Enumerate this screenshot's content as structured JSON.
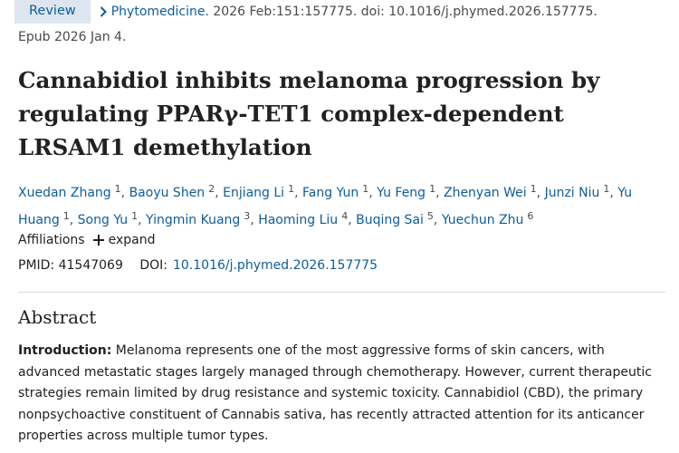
{
  "citation": {
    "badge": "Review",
    "journal": "Phytomedicine.",
    "details": " 2026 Feb:151:157775. doi: 10.1016/j.phymed.2026.157775.",
    "epub": "Epub 2026 Jan 4."
  },
  "article": {
    "title": "Cannabidiol inhibits melanoma progression by regulating PPARγ-TET1 complex-dependent LRSAM1 demethylation"
  },
  "authors": [
    {
      "name": "Xuedan Zhang",
      "aff": "1"
    },
    {
      "name": "Baoyu Shen",
      "aff": "2"
    },
    {
      "name": "Enjiang Li",
      "aff": "1"
    },
    {
      "name": "Fang Yun",
      "aff": "1"
    },
    {
      "name": "Yu Feng",
      "aff": "1"
    },
    {
      "name": "Zhenyan Wei",
      "aff": "1"
    },
    {
      "name": "Junzi Niu",
      "aff": "1"
    },
    {
      "name": "Yu Huang",
      "aff": "1"
    },
    {
      "name": "Song Yu",
      "aff": "1"
    },
    {
      "name": "Yingmin Kuang",
      "aff": "3"
    },
    {
      "name": "Haoming Liu",
      "aff": "4"
    },
    {
      "name": "Buqing Sai",
      "aff": "5"
    },
    {
      "name": "Yuechun Zhu",
      "aff": "6"
    }
  ],
  "affiliations": {
    "label": "Affiliations",
    "expand_label": "expand"
  },
  "ids": {
    "pmid_label": "PMID:",
    "pmid": "41547069",
    "doi_label": "DOI:",
    "doi": "10.1016/j.phymed.2026.157775"
  },
  "abstract": {
    "heading": "Abstract",
    "intro_label": "Introduction:",
    "intro_text": " Melanoma represents one of the most aggressive forms of skin cancers, with advanced metastatic stages largely managed through chemotherapy. However, current therapeutic strategies remain limited by drug resistance and systemic toxicity. Cannabidiol (CBD), the primary nonpsychoactive constituent of Cannabis sativa, has recently attracted attention for its anticancer properties across multiple tumor types."
  },
  "colors": {
    "link": "#0e5d99",
    "badge_bg": "#dde6f0",
    "text": "#212121",
    "muted": "#4a4a4a"
  }
}
